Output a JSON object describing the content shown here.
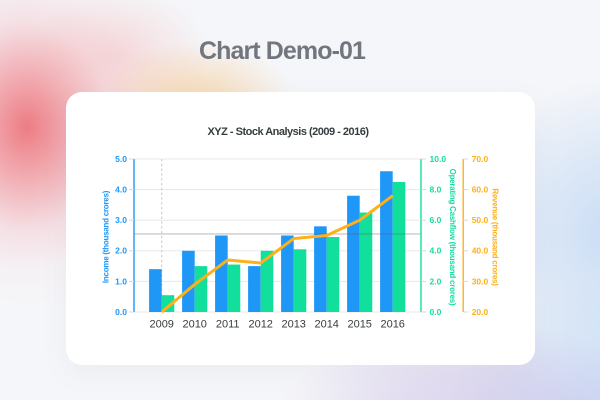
{
  "page": {
    "title": "Chart Demo-01"
  },
  "chart_data": {
    "type": "mixed",
    "title": "XYZ - Stock Analysis (2009 - 2016)",
    "categories": [
      "2009",
      "2010",
      "2011",
      "2012",
      "2013",
      "2014",
      "2015",
      "2016"
    ],
    "series": [
      {
        "name": "Income",
        "type": "column",
        "axis": "income",
        "color": "#1E97F7",
        "values": [
          1.4,
          2,
          2.5,
          1.5,
          2.5,
          2.8,
          3.8,
          4.6
        ]
      },
      {
        "name": "Cashflow",
        "type": "column",
        "axis": "cashflow",
        "color": "#12DF9C",
        "values": [
          1.1,
          3,
          3.1,
          4,
          4.1,
          4.9,
          6.5,
          8.5
        ]
      },
      {
        "name": "Revenue",
        "type": "line",
        "axis": "revenue",
        "color": "#FEB019",
        "values": [
          20,
          29,
          37,
          36,
          44,
          45,
          50,
          58
        ]
      }
    ],
    "yaxes": [
      {
        "id": "income",
        "position": "left",
        "title": "Income (thousand crores)",
        "color": "#1E97F7",
        "min": 0,
        "max": 5,
        "ticks": [
          "0.0",
          "1.0",
          "2.0",
          "3.0",
          "4.0",
          "5.0"
        ]
      },
      {
        "id": "cashflow",
        "position": "right",
        "title": "Operating Cashflow (thousand crores)",
        "color": "#12DF9C",
        "min": 0,
        "max": 10,
        "ticks": [
          "0.0",
          "2.0",
          "4.0",
          "6.0",
          "8.0",
          "10.0"
        ]
      },
      {
        "id": "revenue",
        "position": "right",
        "title": "Revenue (thousand crores)",
        "color": "#FEB019",
        "min": 20,
        "max": 70,
        "ticks": [
          "20.0",
          "30.0",
          "40.0",
          "50.0",
          "60.0",
          "70.0"
        ]
      }
    ],
    "annotations": {
      "crosshair_category": "2009",
      "hline": {
        "axis": "income",
        "value": 2.55
      }
    },
    "grid": true,
    "legend": "none",
    "colors": {
      "grid_line": "#e8e8e8",
      "axis_tick": "#d9d9d9",
      "label_dark": "#373d3f",
      "crosshair": "#c6c6c6",
      "hline": "rgba(90,96,100,0.28)"
    }
  }
}
